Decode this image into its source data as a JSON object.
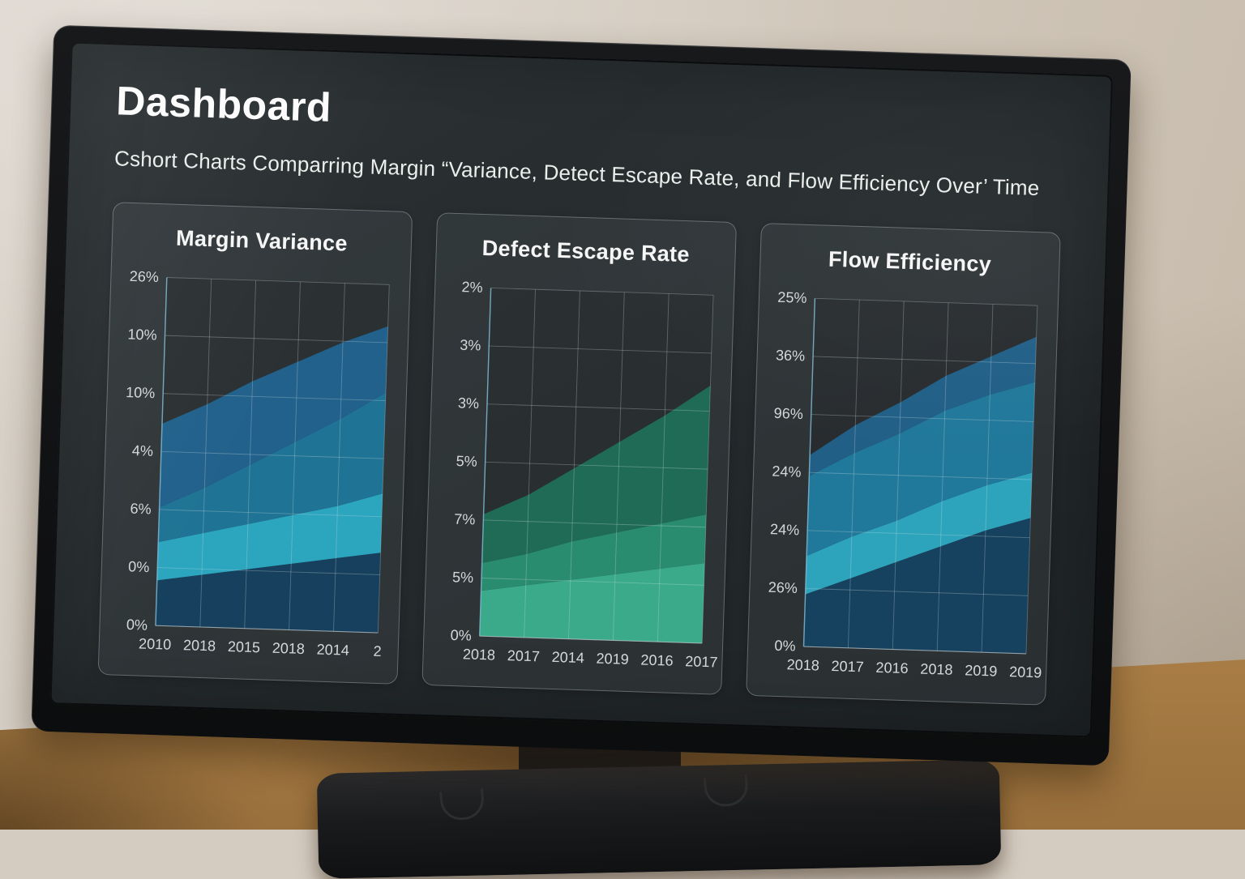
{
  "scene": {
    "wall_color": "#d5ccc1",
    "desk_wood_color": "#b98c55",
    "bezel_color": "#131416",
    "screen_bg_color": "#262b2d",
    "card_border_color": "rgba(190,200,202,0.38)",
    "grid_line_color": "rgba(216,228,230,0.30)",
    "axis_line_color": "#7fb8d2",
    "baseline_color": "rgba(200,210,212,0.55)",
    "tick_label_color": "#d3d9d8",
    "title_color": "#f5f6f5"
  },
  "header": {
    "title": "Dashboard",
    "subtitle": "Cshort Charts Comparring Margin “Variance, Detect Escape Rate, and Flow Efficiency Over’ Time"
  },
  "chart_data": [
    {
      "type": "area",
      "stacked": true,
      "grid": true,
      "legend": "none",
      "title": "Margin Variance",
      "x_tick_labels": [
        "2010",
        "2018",
        "2015",
        "2018",
        "2014",
        "2"
      ],
      "y_tick_labels_top_to_bottom": [
        "26%",
        "10%",
        "10%",
        "4%",
        "6%",
        "0%",
        "0%"
      ],
      "value_scale": "percent_of_plot_height_0_to_100",
      "series": [
        {
          "name": "band-1-bottom",
          "color": "#16405d",
          "values": [
            13,
            15,
            17,
            19,
            21,
            23
          ]
        },
        {
          "name": "band-2",
          "color": "#2ca5bf",
          "values": [
            11,
            12,
            13,
            14,
            15,
            17
          ]
        },
        {
          "name": "band-3",
          "color": "#1f7394",
          "values": [
            10,
            13,
            17,
            21,
            25,
            29
          ]
        },
        {
          "name": "band-4-top",
          "color": "#21618b",
          "values": [
            24,
            24,
            24,
            23,
            22,
            19
          ]
        }
      ]
    },
    {
      "type": "area",
      "stacked": true,
      "grid": true,
      "legend": "none",
      "title": "Defect Escape Rate",
      "x_tick_labels": [
        "2018",
        "2017",
        "2014",
        "2019",
        "2016",
        "2017"
      ],
      "y_tick_labels_top_to_bottom": [
        "2%",
        "3%",
        "3%",
        "5%",
        "7%",
        "5%",
        "0%"
      ],
      "value_scale": "percent_of_plot_height_0_to_100",
      "series": [
        {
          "name": "band-1-bottom",
          "color": "#3aaa8a",
          "values": [
            13,
            15,
            17,
            19,
            21,
            23
          ]
        },
        {
          "name": "band-2",
          "color": "#2a8c6e",
          "values": [
            8,
            9,
            11,
            12,
            13,
            14
          ]
        },
        {
          "name": "band-3-top",
          "color": "#1f6b55",
          "values": [
            14,
            17,
            21,
            26,
            31,
            37
          ]
        }
      ]
    },
    {
      "type": "area",
      "stacked": true,
      "grid": true,
      "legend": "none",
      "title": "Flow Efficiency",
      "x_tick_labels": [
        "2018",
        "2017",
        "2016",
        "2018",
        "2019",
        "2019"
      ],
      "y_tick_labels_top_to_bottom": [
        "25%",
        "36%",
        "96%",
        "24%",
        "24%",
        "26%",
        "0%"
      ],
      "value_scale": "percent_of_plot_height_0_to_100",
      "series": [
        {
          "name": "band-1-bottom",
          "color": "#16415f",
          "values": [
            15,
            20,
            25,
            30,
            35,
            39
          ]
        },
        {
          "name": "band-2",
          "color": "#2ea4bc",
          "values": [
            11,
            12,
            12,
            13,
            13,
            13
          ]
        },
        {
          "name": "band-3",
          "color": "#20789a",
          "values": [
            23,
            24,
            25,
            26,
            26,
            26
          ]
        },
        {
          "name": "band-4-top",
          "color": "#215f87",
          "values": [
            6,
            8,
            9,
            10,
            11,
            13
          ]
        }
      ]
    }
  ]
}
